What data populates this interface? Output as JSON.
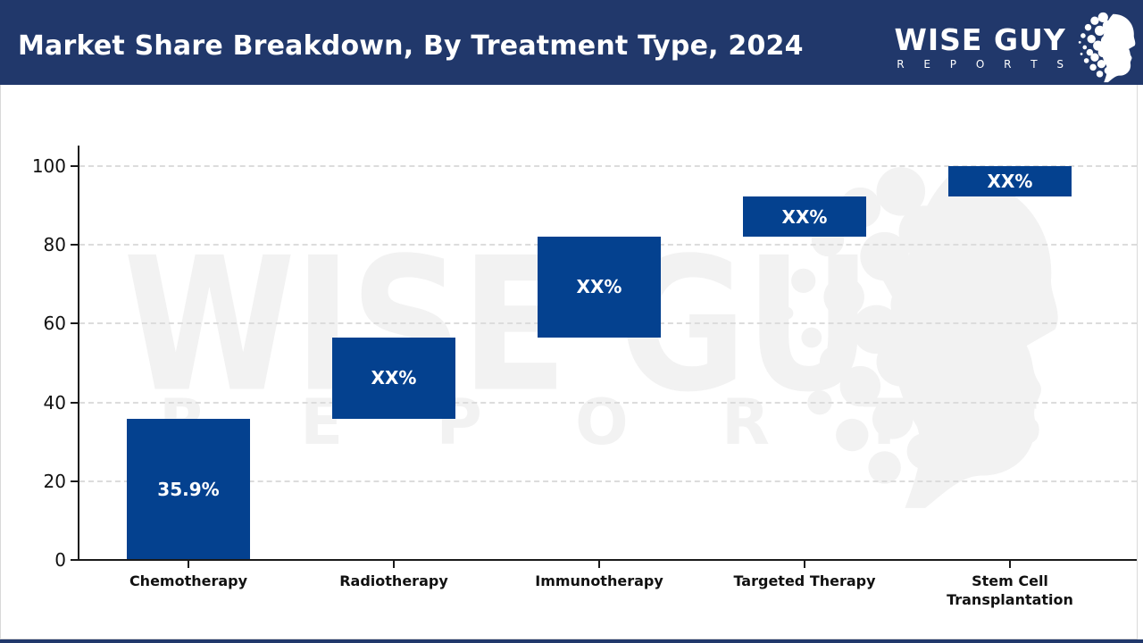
{
  "header": {
    "title": "Market Share Breakdown, By Treatment Type, 2024",
    "logo": {
      "name": "WISE GUY",
      "reports": "R E P O R T S"
    }
  },
  "watermark": {
    "name": "WISE GUY",
    "reports": "R E P O R T S"
  },
  "chart_data": {
    "type": "bar",
    "subtype": "waterfall-floating-bars",
    "title": "Market Share Breakdown, By Treatment Type, 2024",
    "categories": [
      "Chemotherapy",
      "Radiotherapy",
      "Immunotherapy",
      "Targeted Therapy",
      "Stem Cell Transplantation"
    ],
    "segments": [
      {
        "category": "Chemotherapy",
        "start": 0,
        "end": 35.9,
        "label": "35.9%"
      },
      {
        "category": "Radiotherapy",
        "start": 35.9,
        "end": 56.5,
        "label": "XX%"
      },
      {
        "category": "Immunotherapy",
        "start": 56.5,
        "end": 82.1,
        "label": "XX%"
      },
      {
        "category": "Targeted Therapy",
        "start": 82.1,
        "end": 92.2,
        "label": "XX%"
      },
      {
        "category": "Stem Cell Transplantation",
        "start": 92.2,
        "end": 100,
        "label": "XX%"
      }
    ],
    "y_ticks": [
      0,
      20,
      40,
      60,
      80,
      100
    ],
    "ylim": [
      0,
      105
    ],
    "xlabel": "",
    "ylabel": "",
    "grid": "horizontal-dashed",
    "legend": "none"
  },
  "colors": {
    "header_bg": "#21386B",
    "footer_bg": "#21386B",
    "bar": "#04418F",
    "bar_label": "#FFFFFF",
    "grid_line": "#DCDCDC",
    "axis": "#1A1A1A",
    "watermark": "#F2F2F2"
  }
}
